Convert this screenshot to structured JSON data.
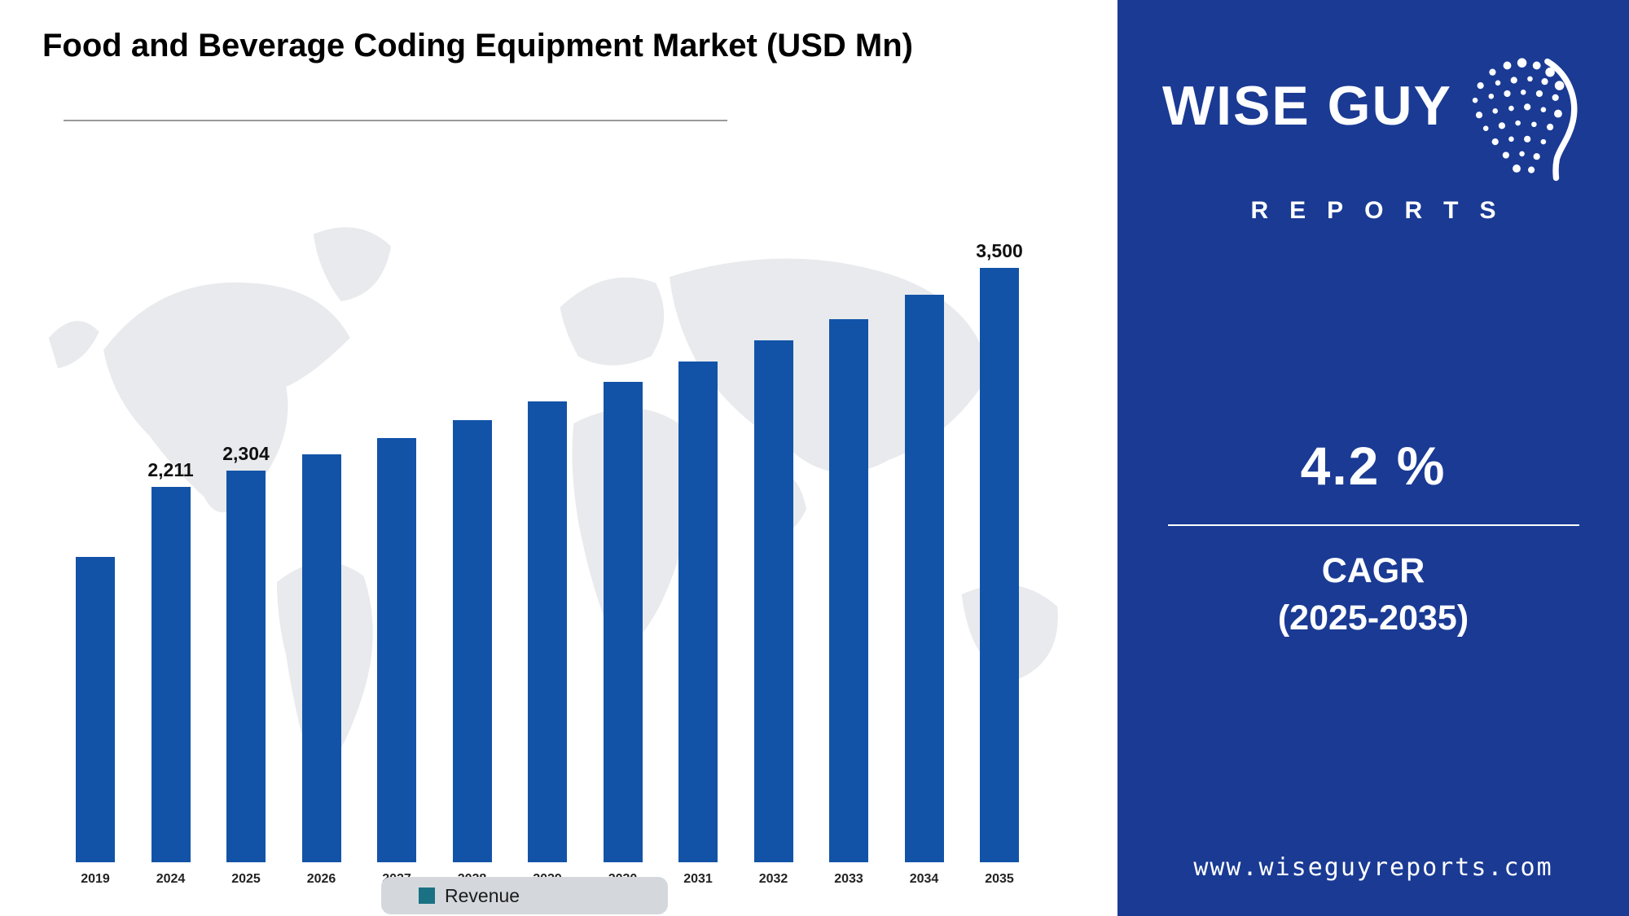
{
  "title": "Food and Beverage Coding Equipment Market (USD Mn)",
  "chart_data": {
    "type": "bar",
    "title": "Food and Beverage Coding Equipment Market (USD Mn)",
    "series_name": "Revenue",
    "categories": [
      "2019",
      "2024",
      "2025",
      "2026",
      "2027",
      "2028",
      "2029",
      "2030",
      "2031",
      "2032",
      "2033",
      "2034",
      "2035"
    ],
    "values": [
      1800,
      2211,
      2304,
      2400,
      2500,
      2605,
      2715,
      2830,
      2950,
      3075,
      3200,
      3340,
      3500
    ],
    "bar_labels": [
      "",
      "2,211",
      "2,304",
      "",
      "",
      "",
      "",
      "",
      "",
      "",
      "",
      "",
      "3,500"
    ],
    "ylim": [
      0,
      3500
    ],
    "xlabel": "",
    "ylabel": "",
    "grid": false,
    "legend_position": "bottom",
    "bar_color": "#1253a8"
  },
  "legend": {
    "label": "Revenue",
    "swatch_color": "#1a7183"
  },
  "sidebar": {
    "background_color": "#1a3a94",
    "logo_line1": "WISE GUY",
    "logo_line2": "REPORTS",
    "logo_icon": "dotted-head-profile-icon",
    "cagr_value": "4.2 %",
    "cagr_label_line1": "CAGR",
    "cagr_label_line2": "(2025-2035)",
    "website": "www.wiseguyreports.com"
  }
}
